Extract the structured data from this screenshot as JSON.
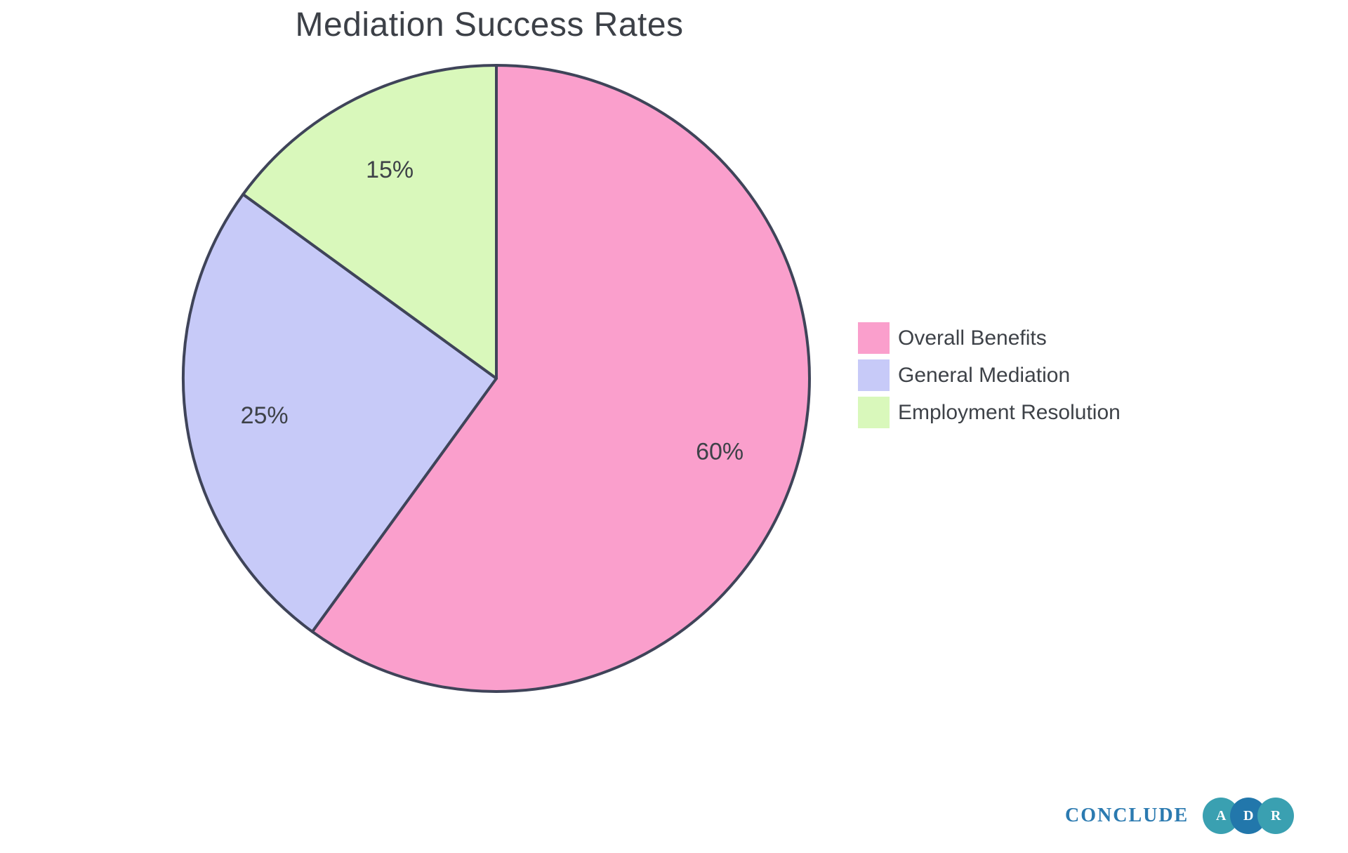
{
  "chart_data": {
    "type": "pie",
    "title": "Mediation Success Rates",
    "labels": [
      "Overall Benefits",
      "General Mediation",
      "Employment Resolution"
    ],
    "values": [
      60,
      25,
      15
    ],
    "slice_text": [
      "60%",
      "25%",
      "15%"
    ],
    "colors": [
      "#FA9FCC",
      "#C7CAF8",
      "#D9F8BB"
    ],
    "slice_border_color": "#3F4459",
    "label_text_color": "#3E4248",
    "start_angle_deg": 0,
    "direction": "clockwise",
    "legend_position": "right",
    "background_color": "#FFFFFF"
  },
  "logo": {
    "wordmark": "CONCLUDE",
    "wordmark_color": "#2B7AB0",
    "badges": [
      {
        "letter": "A",
        "color": "#3AA0B1"
      },
      {
        "letter": "D",
        "color": "#2277AB"
      },
      {
        "letter": "R",
        "color": "#3AA0B1"
      }
    ]
  }
}
